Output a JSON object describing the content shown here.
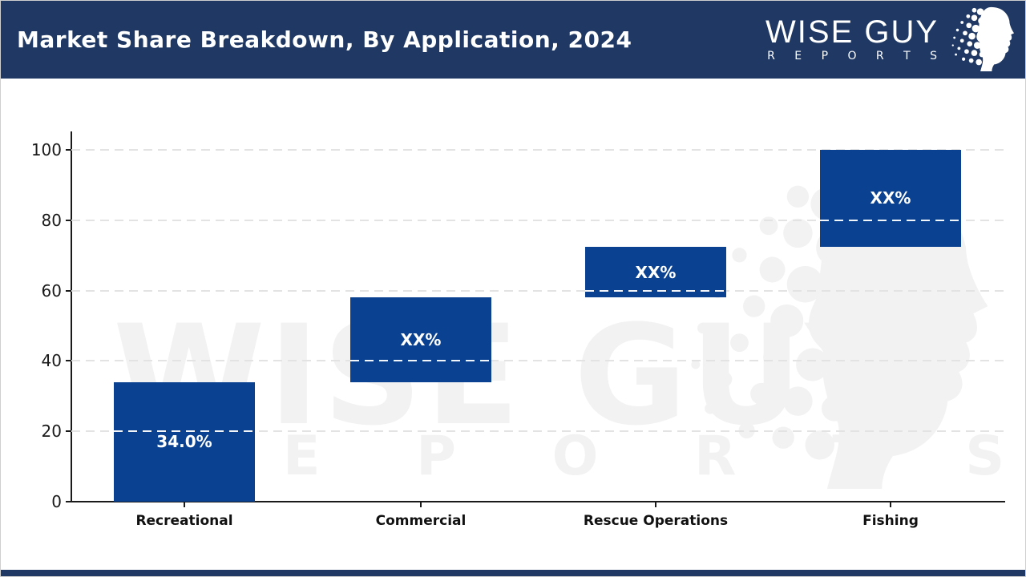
{
  "header": {
    "title": "Market Share Breakdown, By Application, 2024",
    "logo": {
      "line1": "WISE GUY",
      "line2": "R E P O R T S"
    }
  },
  "watermark": {
    "line1": "WISE GUY",
    "line2": "R E P O R T S"
  },
  "chart_data": {
    "type": "bar",
    "subtype": "floating-segment (waterfall-style market share)",
    "title": "Market Share Breakdown, By Application, 2024",
    "categories": [
      "Recreational",
      "Commercial",
      "Rescue Operations",
      "Fishing"
    ],
    "segments": [
      {
        "category": "Recreational",
        "from": 0,
        "to": 34,
        "label": "34.0%"
      },
      {
        "category": "Commercial",
        "from": 34,
        "to": 58,
        "label": "XX%"
      },
      {
        "category": "Rescue Operations",
        "from": 58,
        "to": 72.5,
        "label": "XX%"
      },
      {
        "category": "Fishing",
        "from": 72.5,
        "to": 100,
        "label": "XX%"
      }
    ],
    "xlabel": "",
    "ylabel": "",
    "ylim": [
      0,
      100
    ],
    "yticks": [
      0,
      20,
      40,
      60,
      80,
      100
    ],
    "grid": "horizontal dashed lines, light gray (rendered white where they cross bars)",
    "legend": "none",
    "bar_color": "#0a4191"
  },
  "colors": {
    "header_bg": "#1f3864",
    "footer_bg": "#1f3864",
    "bar": "#0a4191",
    "grid": "#e3e3e3",
    "axis": "#1a1a1a",
    "watermark": "#f2f2f2"
  }
}
